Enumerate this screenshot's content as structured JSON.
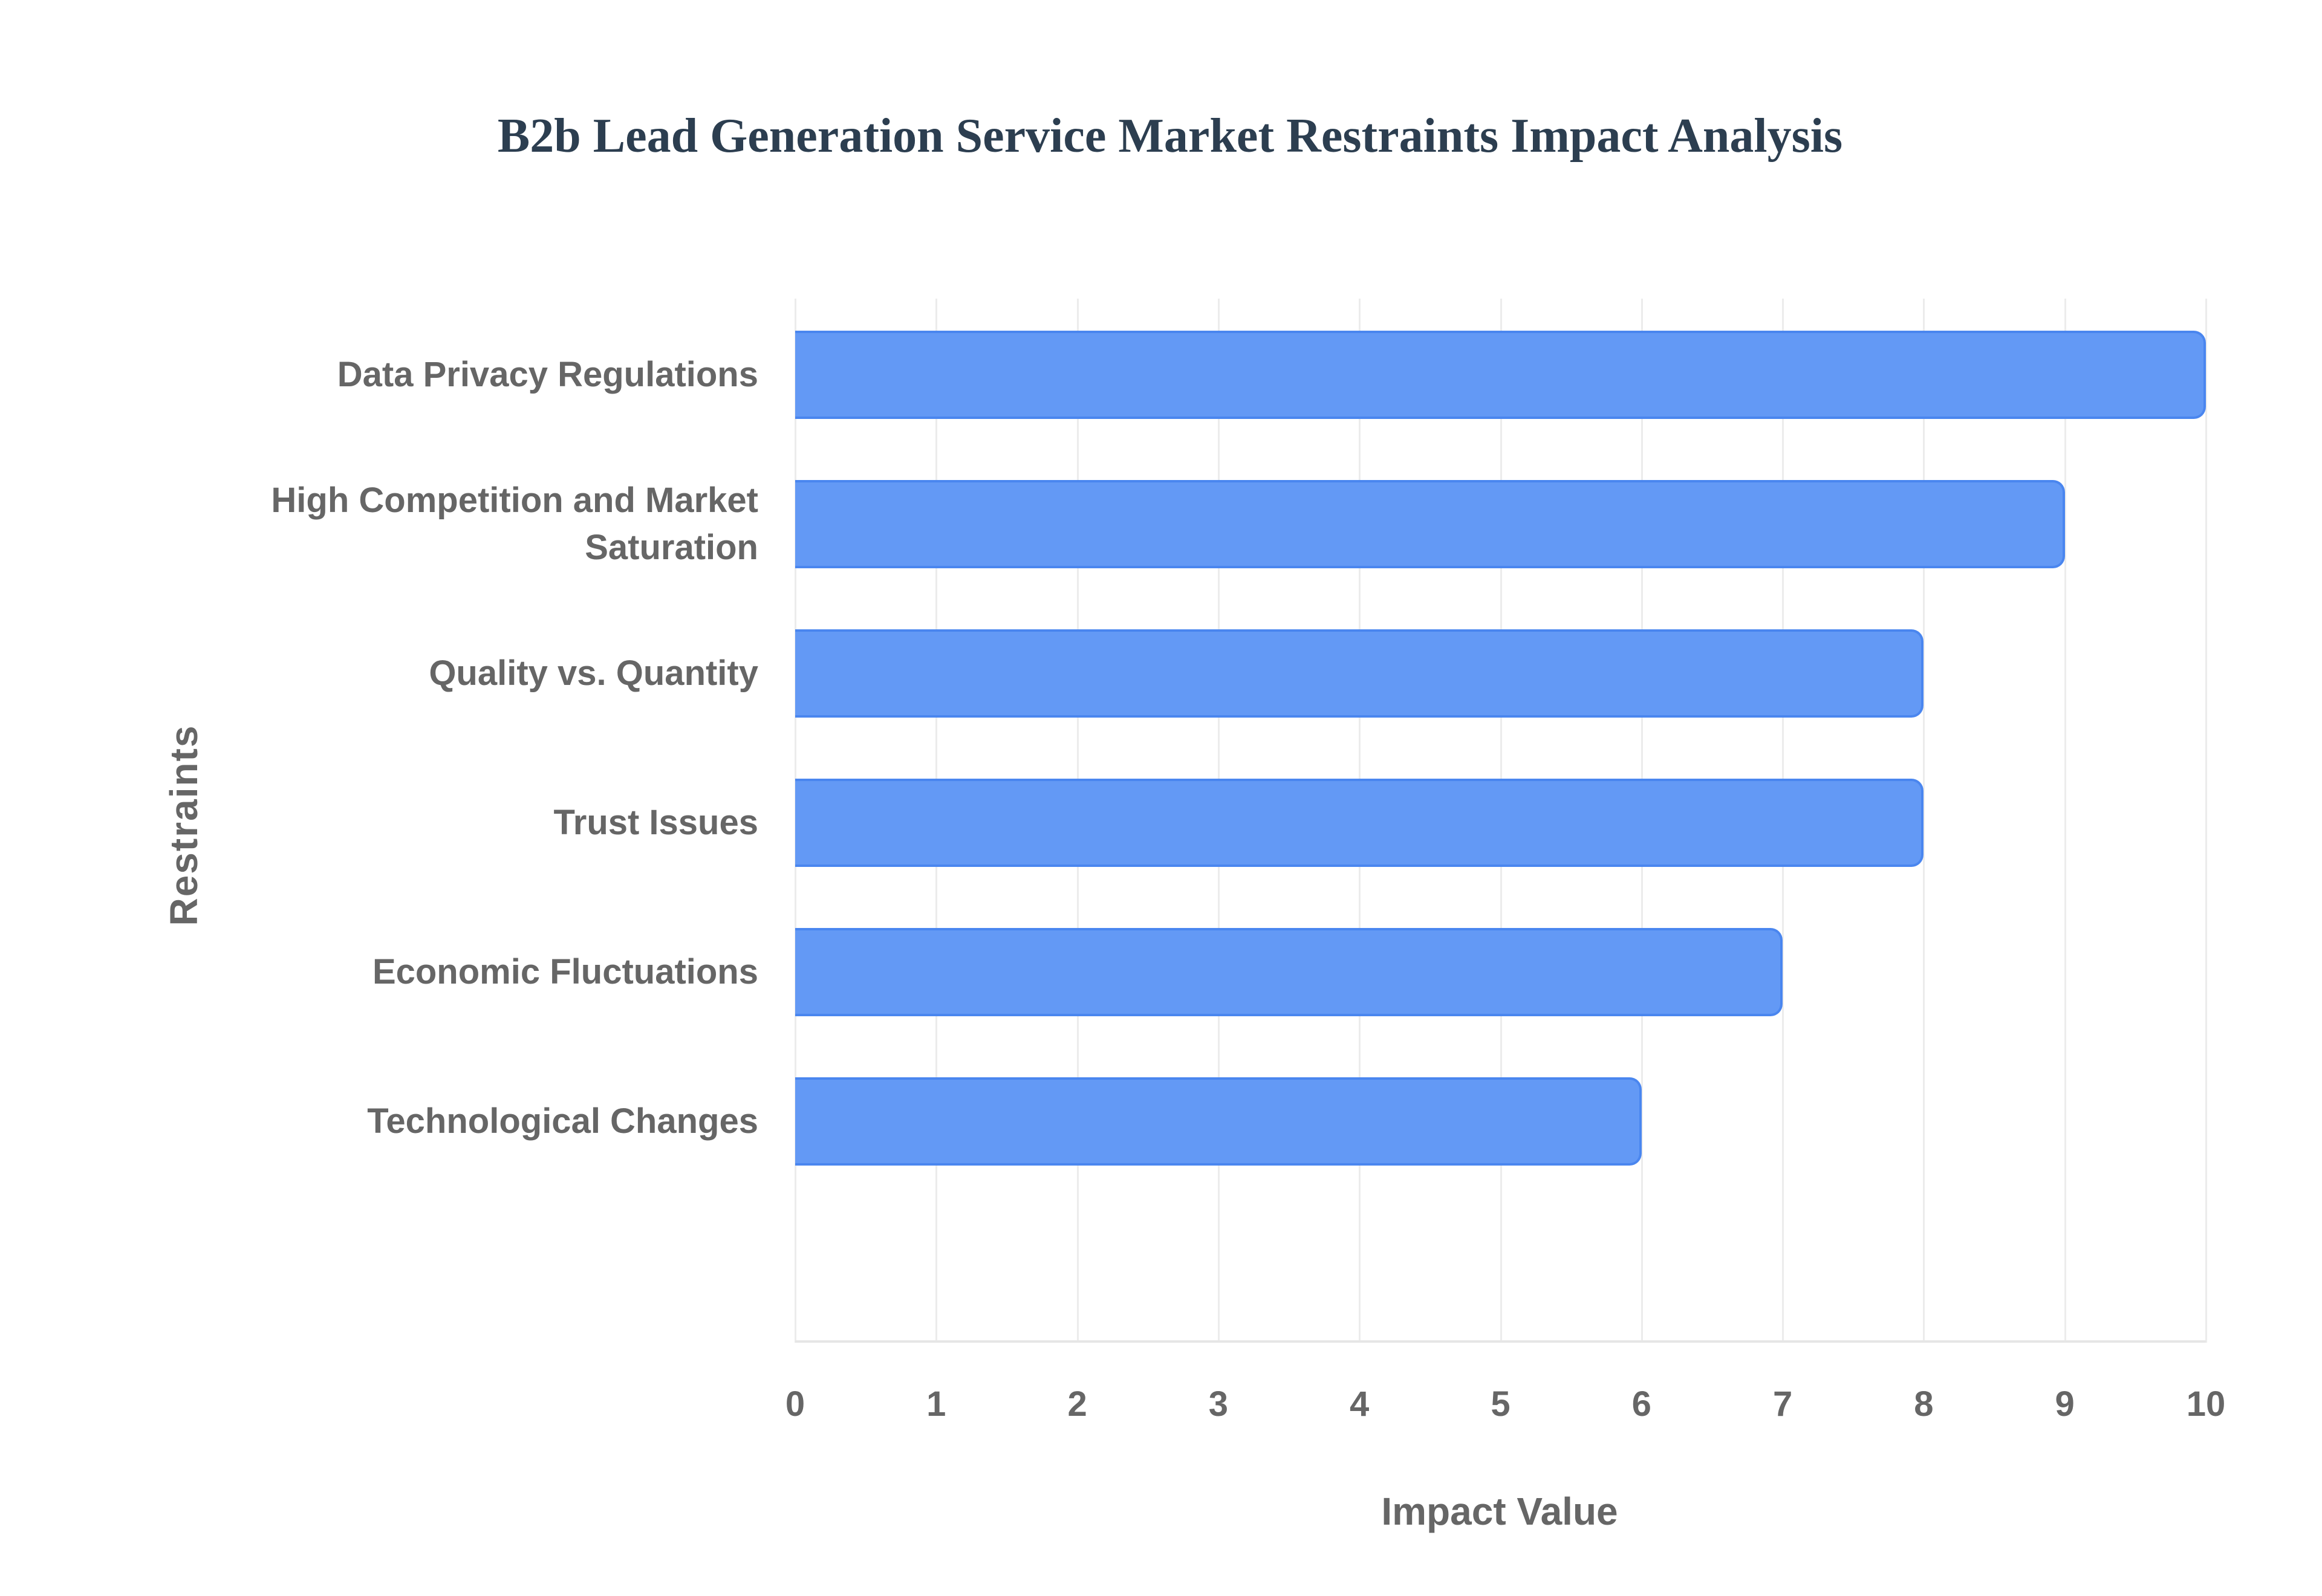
{
  "title": "B2b Lead Generation Service Market Restraints Impact Analysis",
  "colors": {
    "bar_fill": "#6399f5",
    "bar_border": "#4a86ef",
    "title": "#2c3e50",
    "axis_text": "#666666",
    "grid": "#ececec"
  },
  "axes": {
    "x_title": "Impact Value",
    "y_title": "Restraints",
    "x_ticks": [
      "0",
      "1",
      "2",
      "3",
      "4",
      "5",
      "6",
      "7",
      "8",
      "9",
      "10"
    ]
  },
  "bars": [
    {
      "label": "Data Privacy Regulations",
      "label_line1": "Data Privacy Regulations",
      "label_line2": "",
      "value": 10
    },
    {
      "label": "High Competition and Market Saturation",
      "label_line1": "High Competition and Market",
      "label_line2": "Saturation",
      "value": 9
    },
    {
      "label": "Quality vs. Quantity",
      "label_line1": "Quality vs. Quantity",
      "label_line2": "",
      "value": 8
    },
    {
      "label": "Trust Issues",
      "label_line1": "Trust Issues",
      "label_line2": "",
      "value": 8
    },
    {
      "label": "Economic Fluctuations",
      "label_line1": "Economic Fluctuations",
      "label_line2": "",
      "value": 7
    },
    {
      "label": "Technological Changes",
      "label_line1": "Technological Changes",
      "label_line2": "",
      "value": 6
    }
  ],
  "chart_data": {
    "type": "bar",
    "orientation": "horizontal",
    "title": "B2b Lead Generation Service Market Restraints Impact Analysis",
    "xlabel": "Impact Value",
    "ylabel": "Restraints",
    "categories": [
      "Data Privacy Regulations",
      "High Competition and Market Saturation",
      "Quality vs. Quantity",
      "Trust Issues",
      "Economic Fluctuations",
      "Technological Changes"
    ],
    "values": [
      10,
      9,
      8,
      8,
      7,
      6
    ],
    "xlim": [
      0,
      10
    ],
    "x_ticks": [
      0,
      1,
      2,
      3,
      4,
      5,
      6,
      7,
      8,
      9,
      10
    ],
    "grid": true,
    "legend": "none"
  }
}
